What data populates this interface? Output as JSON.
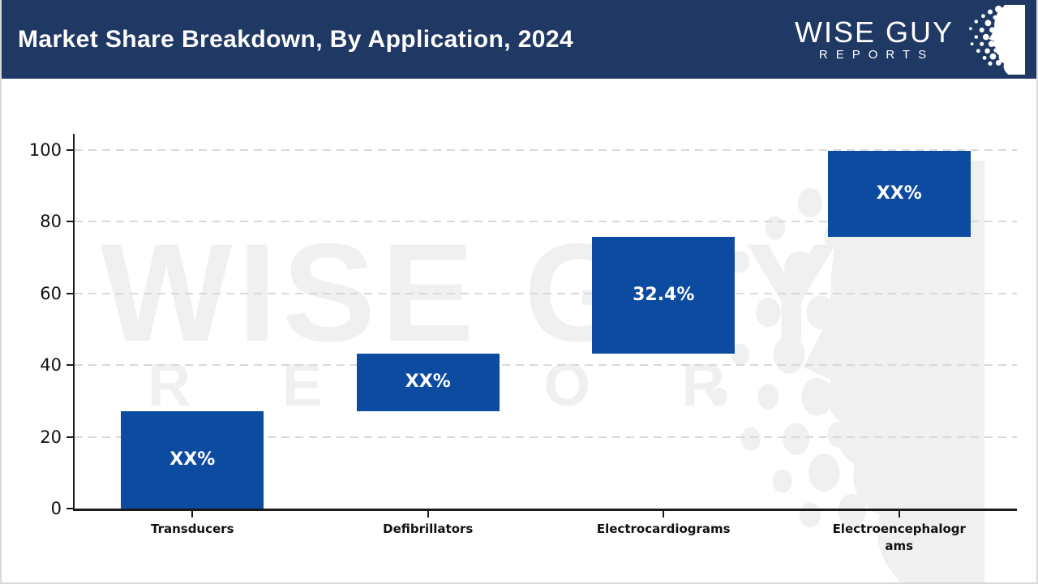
{
  "header": {
    "title": "Market Share Breakdown, By Application, 2024",
    "background_color": "#203864",
    "logo": {
      "wordmark": "WISE GUY",
      "subtitle": "REPORTS",
      "icon": "dotted-face-profile-icon"
    }
  },
  "watermark": {
    "wordmark": "WISE GUY",
    "subtitle": "R E P O R T S"
  },
  "chart_data": {
    "type": "bar",
    "subtype": "waterfall",
    "title": "Market Share Breakdown, By Application, 2024",
    "categories": [
      "Transducers",
      "Defibrillators",
      "Electrocardiograms",
      "Electroencephalograms"
    ],
    "category_display_lines": [
      [
        "Transducers"
      ],
      [
        "Defibrillators"
      ],
      [
        "Electrocardiograms"
      ],
      [
        "Electroencephalogr",
        "ams"
      ]
    ],
    "values": [
      27.1,
      16.2,
      32.4,
      24.1
    ],
    "cumulative_ranges": [
      [
        0,
        27.1
      ],
      [
        27.1,
        43.3
      ],
      [
        43.3,
        75.7
      ],
      [
        75.7,
        99.8
      ]
    ],
    "bar_labels": [
      "XX%",
      "XX%",
      "32.4%",
      "XX%"
    ],
    "xlabel": "",
    "ylabel": "",
    "yticks": [
      0,
      20,
      40,
      60,
      80,
      100
    ],
    "ylim": [
      0,
      104.5
    ],
    "grid": "horizontal-dashed",
    "legend": "none",
    "bar_color": "#0c4ba0",
    "bar_label_color": "#ffffff",
    "axis_color": "#1a1a1a",
    "gridline_color": "#d9d9d9",
    "tick_label_color": "#111111"
  }
}
